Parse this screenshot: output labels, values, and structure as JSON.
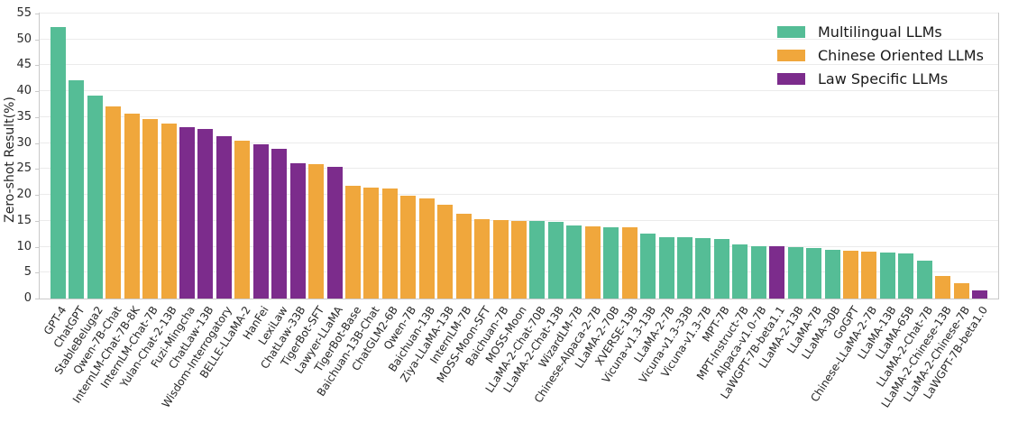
{
  "chart_data": {
    "type": "bar",
    "title": "",
    "xlabel": "",
    "ylabel": "Zero-shot Result(%)",
    "ylim": [
      0,
      55
    ],
    "yticks": [
      0,
      5,
      10,
      15,
      20,
      25,
      30,
      35,
      40,
      45,
      50,
      55
    ],
    "grid": true,
    "legend_position": "upper right",
    "legend": [
      {
        "key": "multilingual",
        "label": "Multilingual LLMs",
        "color": "#55bd96"
      },
      {
        "key": "chinese",
        "label": "Chinese Oriented LLMs",
        "color": "#f0a73c"
      },
      {
        "key": "law",
        "label": "Law Specific LLMs",
        "color": "#7c2c8c"
      }
    ],
    "categories": [
      "GPT-4",
      "ChatGPT",
      "StableBeluga2",
      "Qwen-7B-Chat",
      "InternLM-Chat-7B-8K",
      "InternLM-Chat-7B",
      "Yulan-Chat-2-13B",
      "Fuzi-Mingcha",
      "ChatLaw-13B",
      "Wisdom-Interrogatory",
      "BELLE-LLaMA-2",
      "HanFei",
      "LexiLaw",
      "ChatLaw-33B",
      "TigerBot-SFT",
      "Lawyer-LLaMA",
      "TigerBot-Base",
      "Baichuan-13B-Chat",
      "ChatGLM2-6B",
      "Qwen-7B",
      "Baichuan-13B",
      "Ziya-LLaMA-13B",
      "InternLM-7B",
      "MOSS-Moon-SFT",
      "Baichuan-7B",
      "MOSS-Moon",
      "LLaMA-2-Chat-70B",
      "LLaMA-2-Chat-13B",
      "WizardLM-7B",
      "Chinese-Alpaca-2-7B",
      "LLaMA-2-70B",
      "XVERSE-13B",
      "Vicuna-v1.3-13B",
      "LLaMA-2-7B",
      "Vicuna-v1.3-33B",
      "Vicuna-v1.3-7B",
      "MPT-7B",
      "MPT-Instruct-7B",
      "Alpaca-v1.0-7B",
      "LaWGPT-7B-beta1.1",
      "LLaMA-2-13B",
      "LLaMA-7B",
      "LLaMA-30B",
      "GoGPT",
      "Chinese-LLaMA-2-7B",
      "LLaMA-13B",
      "LLaMA-65B",
      "LLaMA-2-Chat-7B",
      "LLaMA-2-Chinese-13B",
      "LLaMA-2-Chinese-7B",
      "LaWGPT-7B-beta1.0"
    ],
    "values": [
      52.35,
      42.15,
      39.23,
      37.0,
      35.73,
      34.71,
      33.84,
      33.05,
      32.76,
      31.4,
      30.43,
      29.69,
      28.85,
      26.13,
      25.96,
      25.38,
      21.78,
      21.45,
      21.25,
      19.77,
      19.35,
      18.17,
      16.37,
      15.28,
      15.17,
      15.04,
      14.89,
      14.85,
      14.03,
      13.86,
      13.71,
      13.67,
      12.47,
      11.87,
      11.81,
      11.72,
      11.44,
      10.36,
      10.17,
      10.11,
      9.89,
      9.78,
      9.48,
      9.21,
      9.0,
      8.9,
      8.67,
      7.23,
      4.33,
      2.91,
      1.62
    ],
    "groups": [
      "multilingual",
      "multilingual",
      "multilingual",
      "chinese",
      "chinese",
      "chinese",
      "chinese",
      "law",
      "law",
      "law",
      "chinese",
      "law",
      "law",
      "law",
      "chinese",
      "law",
      "chinese",
      "chinese",
      "chinese",
      "chinese",
      "chinese",
      "chinese",
      "chinese",
      "chinese",
      "chinese",
      "chinese",
      "multilingual",
      "multilingual",
      "multilingual",
      "chinese",
      "multilingual",
      "chinese",
      "multilingual",
      "multilingual",
      "multilingual",
      "multilingual",
      "multilingual",
      "multilingual",
      "multilingual",
      "law",
      "multilingual",
      "multilingual",
      "multilingual",
      "chinese",
      "chinese",
      "multilingual",
      "multilingual",
      "multilingual",
      "chinese",
      "chinese",
      "law"
    ]
  }
}
